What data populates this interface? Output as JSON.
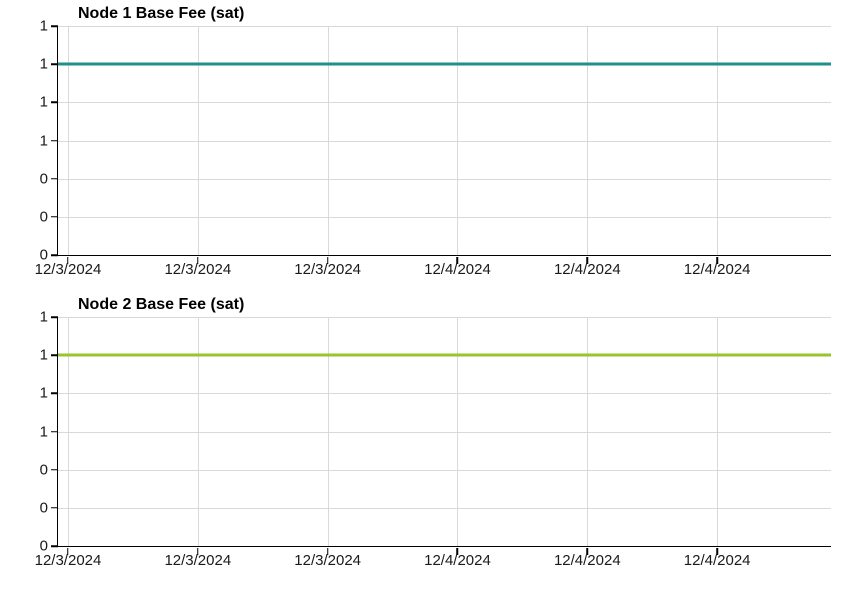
{
  "page": {
    "background": "#ffffff"
  },
  "colors": {
    "axis": "#000000",
    "gridline": "#d9d9d9",
    "tick_label": "#1a1a1a",
    "title": "#000000"
  },
  "chart_data": [
    {
      "type": "line",
      "title": "Node 1 Base Fee (sat)",
      "xlabel": "",
      "ylabel": "",
      "x_tick_labels": [
        "12/3/2024",
        "12/3/2024",
        "12/3/2024",
        "12/4/2024",
        "12/4/2024",
        "12/4/2024"
      ],
      "y_tick_labels": [
        "1",
        "1",
        "1",
        "1",
        "0",
        "0",
        "0"
      ],
      "y_tick_values": [
        1.2,
        1.0,
        0.8,
        0.6,
        0.4,
        0.2,
        0.0
      ],
      "ylim": [
        0,
        1.2
      ],
      "grid": true,
      "legend_position": "none",
      "series": [
        {
          "name": "Node 1 Base Fee (sat)",
          "color": "#1e8f8f",
          "values": [
            1,
            1,
            1,
            1,
            1,
            1
          ]
        }
      ]
    },
    {
      "type": "line",
      "title": "Node 2 Base Fee (sat)",
      "xlabel": "",
      "ylabel": "",
      "x_tick_labels": [
        "12/3/2024",
        "12/3/2024",
        "12/3/2024",
        "12/4/2024",
        "12/4/2024",
        "12/4/2024"
      ],
      "y_tick_labels": [
        "1",
        "1",
        "1",
        "1",
        "0",
        "0",
        "0"
      ],
      "y_tick_values": [
        1.2,
        1.0,
        0.8,
        0.6,
        0.4,
        0.2,
        0.0
      ],
      "ylim": [
        0,
        1.2
      ],
      "grid": true,
      "legend_position": "none",
      "series": [
        {
          "name": "Node 2 Base Fee (sat)",
          "color": "#95c62c",
          "values": [
            1,
            1,
            1,
            1,
            1,
            1
          ]
        }
      ]
    }
  ]
}
